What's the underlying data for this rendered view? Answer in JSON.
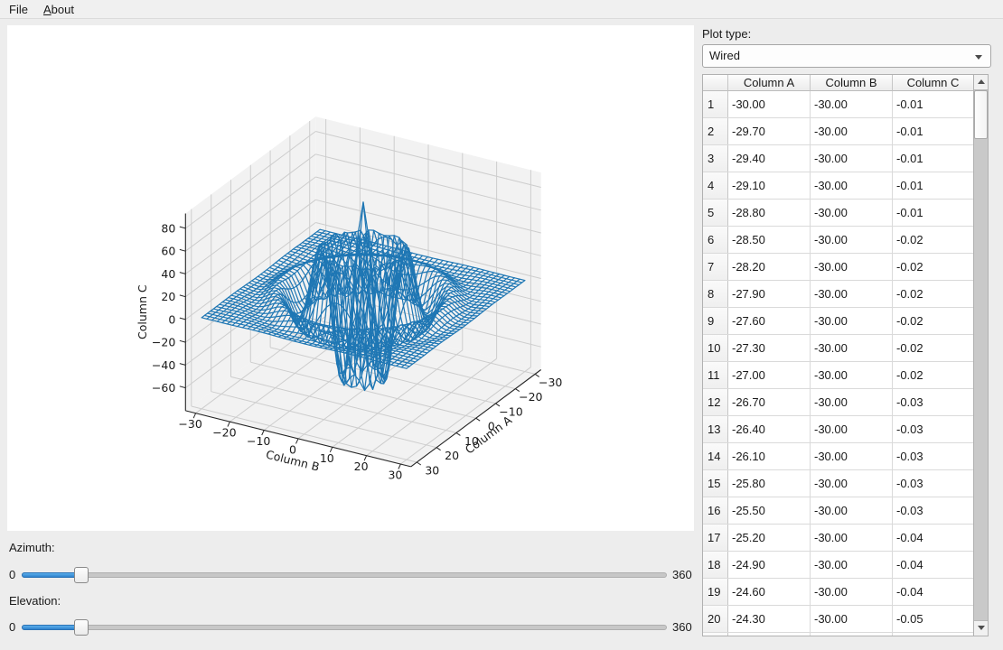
{
  "menu": {
    "items": [
      {
        "label": "File",
        "accel_underline_index": -1
      },
      {
        "label": "About",
        "accel_underline_index": 0
      }
    ]
  },
  "controls": {
    "plot_type_label": "Plot type:",
    "plot_type_value": "Wired",
    "azimuth": {
      "label": "Azimuth:",
      "min": "0",
      "max": "360",
      "value": 30,
      "range_max": 360
    },
    "elevation": {
      "label": "Elevation:",
      "min": "0",
      "max": "360",
      "value": 30,
      "range_max": 360
    }
  },
  "table": {
    "headers": [
      "Column A",
      "Column B",
      "Column C"
    ],
    "rows": [
      [
        "1",
        "-30.00",
        "-30.00",
        "-0.01"
      ],
      [
        "2",
        "-29.70",
        "-30.00",
        "-0.01"
      ],
      [
        "3",
        "-29.40",
        "-30.00",
        "-0.01"
      ],
      [
        "4",
        "-29.10",
        "-30.00",
        "-0.01"
      ],
      [
        "5",
        "-28.80",
        "-30.00",
        "-0.01"
      ],
      [
        "6",
        "-28.50",
        "-30.00",
        "-0.02"
      ],
      [
        "7",
        "-28.20",
        "-30.00",
        "-0.02"
      ],
      [
        "8",
        "-27.90",
        "-30.00",
        "-0.02"
      ],
      [
        "9",
        "-27.60",
        "-30.00",
        "-0.02"
      ],
      [
        "10",
        "-27.30",
        "-30.00",
        "-0.02"
      ],
      [
        "11",
        "-27.00",
        "-30.00",
        "-0.02"
      ],
      [
        "12",
        "-26.70",
        "-30.00",
        "-0.03"
      ],
      [
        "13",
        "-26.40",
        "-30.00",
        "-0.03"
      ],
      [
        "14",
        "-26.10",
        "-30.00",
        "-0.03"
      ],
      [
        "15",
        "-25.80",
        "-30.00",
        "-0.03"
      ],
      [
        "16",
        "-25.50",
        "-30.00",
        "-0.03"
      ],
      [
        "17",
        "-25.20",
        "-30.00",
        "-0.04"
      ],
      [
        "18",
        "-24.90",
        "-30.00",
        "-0.04"
      ],
      [
        "19",
        "-24.60",
        "-30.00",
        "-0.04"
      ],
      [
        "20",
        "-24.30",
        "-30.00",
        "-0.05"
      ]
    ]
  },
  "chart_data": {
    "type": "3d_wireframe_surface",
    "title": "",
    "x_label": "Column A",
    "y_label": "Column B",
    "z_label": "Column C",
    "x_ticks": [
      -30,
      -20,
      -10,
      0,
      10,
      20,
      30
    ],
    "y_ticks": [
      -30,
      -20,
      -10,
      0,
      10,
      20,
      30
    ],
    "z_ticks": [
      -60,
      -40,
      -20,
      0,
      20,
      40,
      60,
      80
    ],
    "x_range": [
      -30,
      30
    ],
    "y_range": [
      -30,
      30
    ],
    "z_axis_display_range": [
      -80,
      93
    ],
    "sample_step": 0.3,
    "view": {
      "azimuth_deg": 30,
      "elevation_deg": 30
    },
    "wire_color": "#1f77b4",
    "grid": true,
    "surface": {
      "model": "z = A*cos(k*r)*exp(-(r/sigma)^2), r = sqrt(x^2+y^2); ripple peak ~85, trough ~-70, flat (~0) at |x|,|y| > ~20",
      "A": 85,
      "k": 0.55,
      "sigma": 14,
      "wire_step": 1.5
    }
  }
}
